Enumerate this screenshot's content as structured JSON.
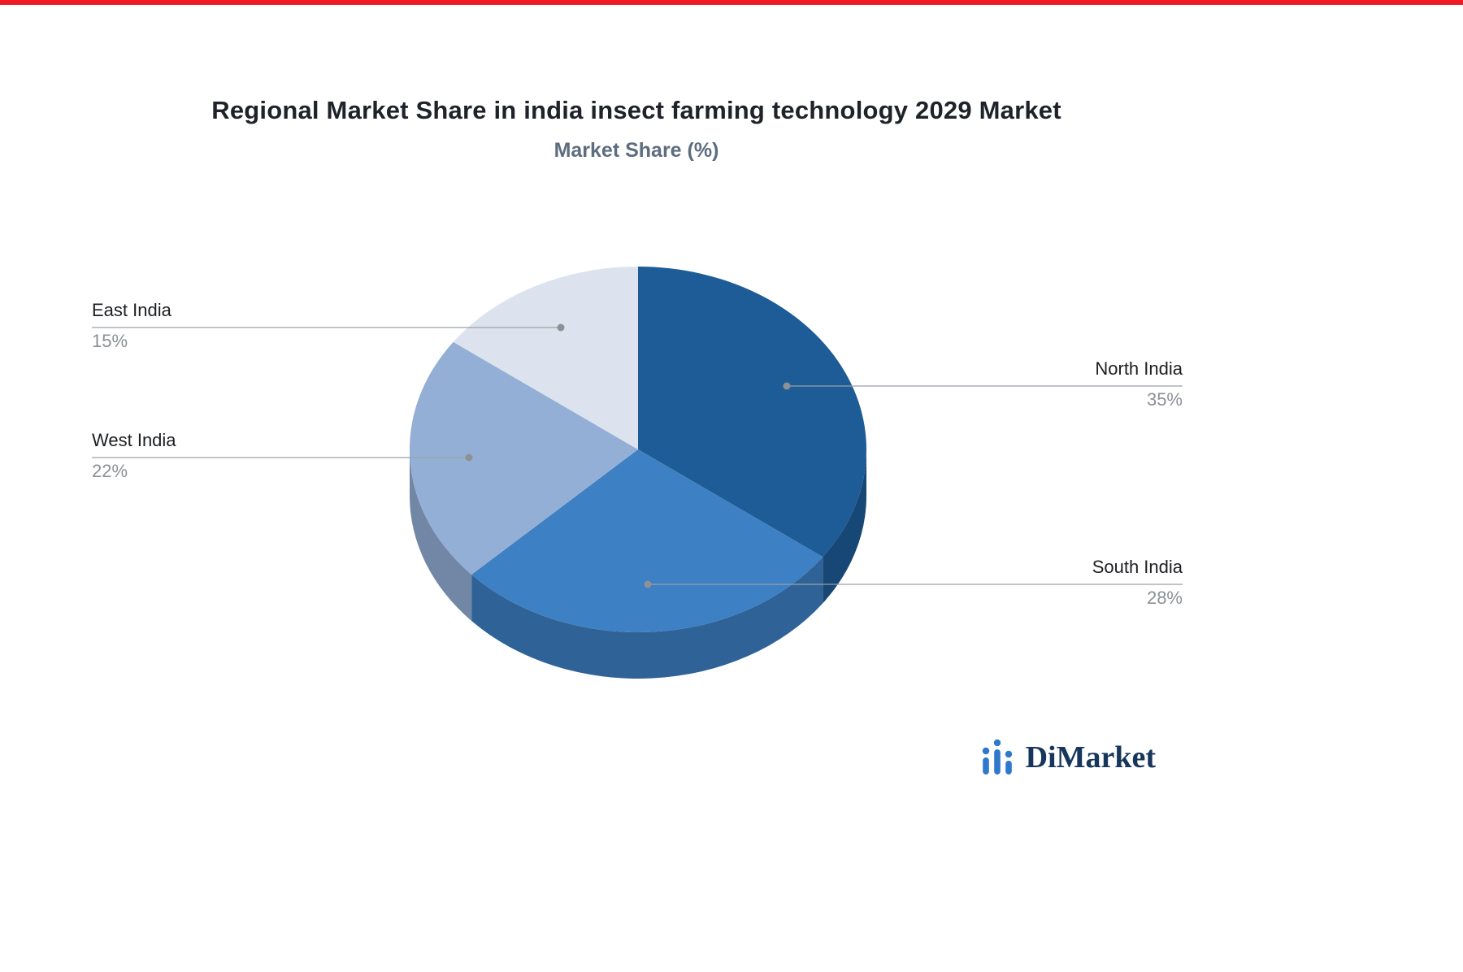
{
  "page": {
    "accent_bar_color": "#ed1c24",
    "background_color": "#ffffff"
  },
  "chart_data": {
    "type": "pie",
    "style": "3d",
    "title": "Regional Market Share in india insect farming technology 2029 Market",
    "subtitle": "Market Share (%)",
    "unit": "%",
    "direction": "clockwise",
    "start_angle_deg": 0,
    "legend": "none",
    "labels_position": "outside-with-leader-lines",
    "segments": [
      {
        "label": "North India",
        "value": 35,
        "percent_label": "35%",
        "color": "#1e5c97"
      },
      {
        "label": "South India",
        "value": 28,
        "percent_label": "28%",
        "color": "#3d80c4"
      },
      {
        "label": "West India",
        "value": 22,
        "percent_label": "22%",
        "color": "#94afd6"
      },
      {
        "label": "East India",
        "value": 15,
        "percent_label": "15%",
        "color": "#dce3ee"
      }
    ]
  },
  "branding": {
    "logo_text": "DiMarket",
    "logo_icon": "bar-chart-icon",
    "logo_text_color": "#16365c",
    "logo_icon_color": "#2e79cc"
  }
}
